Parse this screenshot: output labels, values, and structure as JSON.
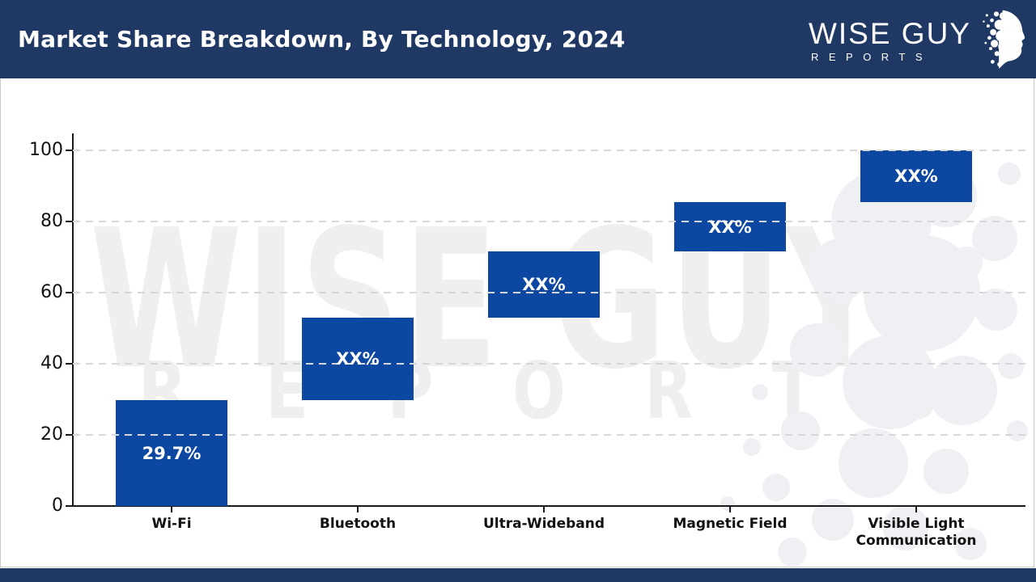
{
  "header": {
    "title": "Market Share Breakdown, By Technology, 2024",
    "brand": {
      "line1": "WISE GUY",
      "line2": "REPORTS"
    },
    "bg_color": "#1F3864"
  },
  "watermark": {
    "line1": "WISE GUY",
    "line2": "REPORTS"
  },
  "chart_data": {
    "type": "bar",
    "subtype": "waterfall-floating-bars",
    "title": "Market Share Breakdown, By Technology, 2024",
    "categories": [
      "Wi-Fi",
      "Bluetooth",
      "Ultra-Wideband",
      "Magnetic Field",
      "Visible Light Communication"
    ],
    "segments": [
      {
        "category": "Wi-Fi",
        "start": 0,
        "end": 29.7,
        "label": "29.7%"
      },
      {
        "category": "Bluetooth",
        "start": 29.7,
        "end": 53.0,
        "label": "XX%"
      },
      {
        "category": "Ultra-Wideband",
        "start": 53.0,
        "end": 71.5,
        "label": "XX%"
      },
      {
        "category": "Magnetic Field",
        "start": 71.5,
        "end": 85.5,
        "label": "XX%"
      },
      {
        "category": "Visible Light Communication",
        "start": 85.5,
        "end": 100,
        "label": "XX%"
      }
    ],
    "y_ticks": [
      0,
      20,
      40,
      60,
      80,
      100
    ],
    "ylim": [
      0,
      105
    ],
    "xlabel": "",
    "ylabel": "",
    "grid": true,
    "grid_style": "dashed",
    "legend": false,
    "bar_color": "#0C47A1",
    "label_color": "#ffffff"
  },
  "footer": {
    "bg_color": "#1F3864"
  }
}
